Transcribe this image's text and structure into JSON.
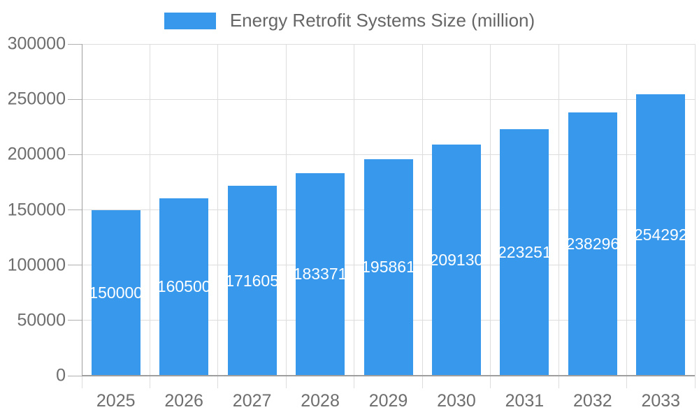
{
  "legend": {
    "label": "Energy Retrofit Systems Size (million)"
  },
  "colors": {
    "bar": "#3898ec",
    "grid": "#dddddd",
    "tick": "#b0b0b0",
    "axis": "#9e9e9e",
    "axis_text": "#6e6e6e",
    "legend_text": "#666666",
    "bar_label_text": "#ffffff",
    "background": "#ffffff"
  },
  "chart_data": {
    "type": "bar",
    "title": "Energy Retrofit Systems Size (million)",
    "categories": [
      "2025",
      "2026",
      "2027",
      "2028",
      "2029",
      "2030",
      "2031",
      "2032",
      "2033"
    ],
    "values": [
      150000,
      160500,
      171605,
      183371,
      195861,
      209130,
      223251,
      238296,
      254292
    ],
    "data_labels": [
      "150000",
      "160500",
      "171605",
      "183371",
      "195861",
      "209130",
      "223251",
      "238296",
      "254292"
    ],
    "xlabel": "",
    "ylabel": "",
    "ylim": [
      0,
      300000
    ],
    "yticks": [
      0,
      50000,
      100000,
      150000,
      200000,
      250000,
      300000
    ],
    "ytick_labels": [
      "0",
      "50000",
      "100000",
      "150000",
      "200000",
      "250000",
      "300000"
    ],
    "grid": true,
    "legend_position": "top",
    "data_label_position": "inside-center"
  }
}
